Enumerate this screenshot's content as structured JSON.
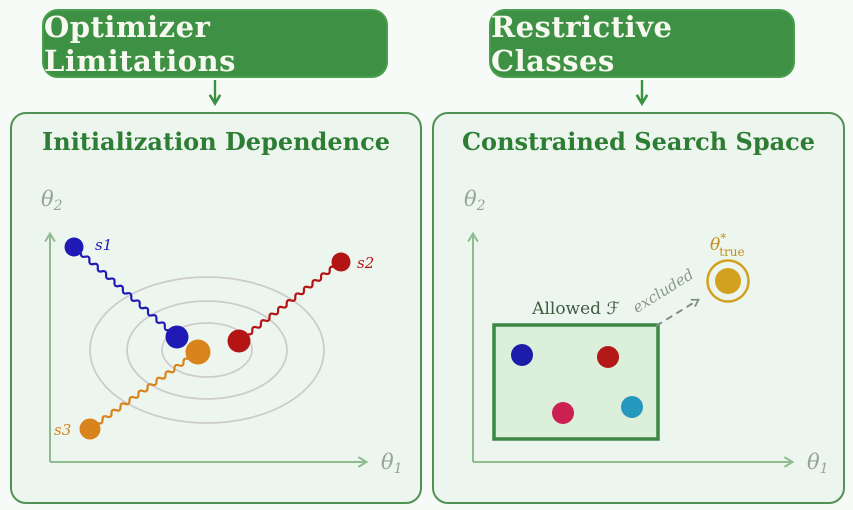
{
  "colors": {
    "page_bg": "#f7fbf7",
    "header_bg": "#3e9144",
    "header_border": "#48a04e",
    "header_text": "#f7f8ef",
    "panel_bg": "#edf6ee",
    "panel_border": "#4f9254",
    "title": "#2e7d35",
    "arrow_green": "#3a9140",
    "axis": "#8fbc8f",
    "theta_label": "#95a495",
    "contour": "#cccccc",
    "s1_blue": "#1f1ab5",
    "s2_red": "#b31414",
    "s3_orange": "#d8831c",
    "box_fill": "#dcefdb",
    "box_border": "#3c8743",
    "allowed_text": "#3e5a40",
    "dot_blue": "#1c1caa",
    "dot_red": "#b31919",
    "dot_crimson": "#cc2053",
    "dot_teal": "#2598bd",
    "gold": "#d2a11e",
    "gold_text": "#c29018",
    "excluded_text": "#8a988a",
    "dashed_arrow": "#808f80"
  },
  "left": {
    "header_label": "Optimizer Limitations",
    "panel_title": "Initialization Dependence",
    "axes": {
      "x_base": "θ",
      "x_sub": "1",
      "y_base": "θ",
      "y_sub": "2"
    },
    "seeds": [
      {
        "label": "s1"
      },
      {
        "label": "s2"
      },
      {
        "label": "s3"
      }
    ]
  },
  "right": {
    "header_label": "Restrictive Classes",
    "panel_title": "Constrained Search Space",
    "axes": {
      "x_base": "θ",
      "x_sub": "1",
      "y_base": "θ",
      "y_sub": "2"
    },
    "allowed_label": "Allowed ℱ",
    "excluded_label": "excluded",
    "true_theta": {
      "base": "θ",
      "sup": "*",
      "sub": "true"
    }
  }
}
